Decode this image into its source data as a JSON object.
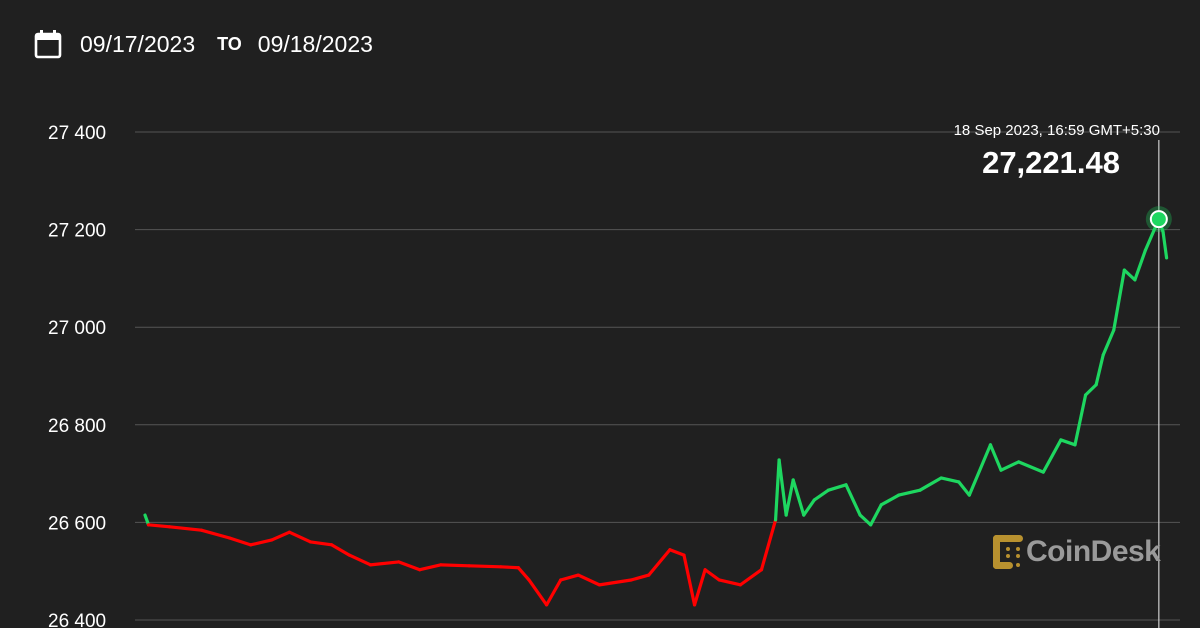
{
  "header": {
    "icon": "calendar-icon",
    "from_date": "09/17/2023",
    "to_label": "TO",
    "to_date": "09/18/2023"
  },
  "tooltip": {
    "time": "18 Sep 2023, 16:59 GMT+5:30",
    "value": "27,221.48"
  },
  "watermark": {
    "text": "CoinDesk",
    "logo_color": "#b8912f"
  },
  "colors": {
    "background": "#202020",
    "up": "#1ed760",
    "down": "#ff0000",
    "grid": "#555555"
  },
  "chart_data": {
    "type": "line",
    "title": "",
    "xlabel": "",
    "ylabel": "",
    "ylim": [
      26400,
      27400
    ],
    "yticks": [
      27400,
      27200,
      27000,
      26800,
      26600,
      26400
    ],
    "ytick_labels": [
      "27 400",
      "27 200",
      "27 000",
      "26 800",
      "26 600",
      "26 400"
    ],
    "xlim": [
      "2023-09-17T17:00",
      "2023-09-18T17:12"
    ],
    "grid": true,
    "baseline": 26605,
    "highlight": {
      "x": "2023-09-18T16:59",
      "y": 27221.48
    },
    "points": [
      [
        "2023-09-17T17:00",
        26615
      ],
      [
        "2023-09-17T17:05",
        26595
      ],
      [
        "2023-09-17T17:35",
        26591
      ],
      [
        "2023-09-17T18:20",
        26584
      ],
      [
        "2023-09-17T19:00",
        26568
      ],
      [
        "2023-09-17T19:30",
        26554
      ],
      [
        "2023-09-17T20:00",
        26564
      ],
      [
        "2023-09-17T20:25",
        26580
      ],
      [
        "2023-09-17T20:55",
        26560
      ],
      [
        "2023-09-17T21:25",
        26554
      ],
      [
        "2023-09-17T21:50",
        26533
      ],
      [
        "2023-09-17T22:20",
        26513
      ],
      [
        "2023-09-17T23:00",
        26519
      ],
      [
        "2023-09-17T23:30",
        26503
      ],
      [
        "2023-09-18T00:00",
        26513
      ],
      [
        "2023-09-18T00:40",
        26511
      ],
      [
        "2023-09-18T01:25",
        26509
      ],
      [
        "2023-09-18T01:50",
        26507
      ],
      [
        "2023-09-18T02:05",
        26482
      ],
      [
        "2023-09-18T02:30",
        26431
      ],
      [
        "2023-09-18T02:50",
        26482
      ],
      [
        "2023-09-18T03:15",
        26492
      ],
      [
        "2023-09-18T03:45",
        26472
      ],
      [
        "2023-09-18T04:30",
        26482
      ],
      [
        "2023-09-18T04:55",
        26492
      ],
      [
        "2023-09-18T05:25",
        26544
      ],
      [
        "2023-09-18T05:45",
        26533
      ],
      [
        "2023-09-18T06:00",
        26431
      ],
      [
        "2023-09-18T06:15",
        26503
      ],
      [
        "2023-09-18T06:35",
        26482
      ],
      [
        "2023-09-18T07:05",
        26472
      ],
      [
        "2023-09-18T07:35",
        26503
      ],
      [
        "2023-09-18T07:55",
        26605
      ],
      [
        "2023-09-18T08:00",
        26728
      ],
      [
        "2023-09-18T08:10",
        26615
      ],
      [
        "2023-09-18T08:20",
        26687
      ],
      [
        "2023-09-18T08:35",
        26615
      ],
      [
        "2023-09-18T08:50",
        26646
      ],
      [
        "2023-09-18T09:10",
        26666
      ],
      [
        "2023-09-18T09:35",
        26677
      ],
      [
        "2023-09-18T09:55",
        26615
      ],
      [
        "2023-09-18T10:10",
        26595
      ],
      [
        "2023-09-18T10:25",
        26636
      ],
      [
        "2023-09-18T10:50",
        26656
      ],
      [
        "2023-09-18T11:20",
        26666
      ],
      [
        "2023-09-18T11:50",
        26691
      ],
      [
        "2023-09-18T12:15",
        26683
      ],
      [
        "2023-09-18T12:30",
        26656
      ],
      [
        "2023-09-18T13:00",
        26759
      ],
      [
        "2023-09-18T13:15",
        26707
      ],
      [
        "2023-09-18T13:40",
        26724
      ],
      [
        "2023-09-18T14:15",
        26703
      ],
      [
        "2023-09-18T14:40",
        26769
      ],
      [
        "2023-09-18T15:00",
        26759
      ],
      [
        "2023-09-18T15:15",
        26861
      ],
      [
        "2023-09-18T15:30",
        26882
      ],
      [
        "2023-09-18T15:40",
        26943
      ],
      [
        "2023-09-18T15:55",
        26994
      ],
      [
        "2023-09-18T16:10",
        27117
      ],
      [
        "2023-09-18T16:25",
        27097
      ],
      [
        "2023-09-18T16:40",
        27158
      ],
      [
        "2023-09-18T16:59",
        27221.48
      ],
      [
        "2023-09-18T17:05",
        27195
      ],
      [
        "2023-09-18T17:10",
        27142
      ]
    ]
  }
}
